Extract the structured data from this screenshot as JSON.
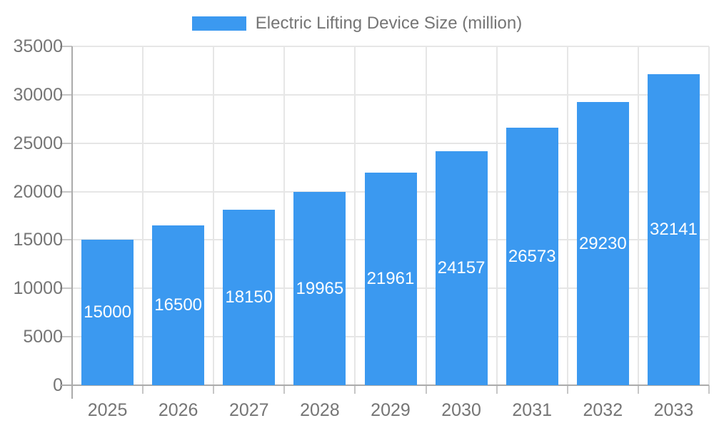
{
  "legend": {
    "label": "Electric Lifting Device Size (million)"
  },
  "colors": {
    "bar": "#3B99F0",
    "grid": "#E6E6E6",
    "axis": "#ABABAB",
    "tick": "#C6C6C6",
    "axis_text": "#757575",
    "value_text": "#FFFFFF",
    "background": "#FFFFFF"
  },
  "chart_data": {
    "type": "bar",
    "title": "Electric Lifting Device Size (million)",
    "legend_position": "top",
    "categories": [
      "2025",
      "2026",
      "2027",
      "2028",
      "2029",
      "2030",
      "2031",
      "2032",
      "2033"
    ],
    "series": [
      {
        "name": "Electric Lifting Device Size (million)",
        "values": [
          15000,
          16500,
          18150,
          19965,
          21961,
          24157,
          26573,
          29230,
          32141
        ]
      }
    ],
    "bar_value_labels": [
      "15000",
      "16500",
      "18150",
      "19965",
      "21961",
      "24157",
      "26573",
      "29230",
      "32141"
    ],
    "xlabel": "",
    "ylabel": "",
    "ylim": [
      0,
      35000
    ],
    "ytick_interval": 5000,
    "ytick_labels": [
      "0",
      "5000",
      "10000",
      "15000",
      "20000",
      "25000",
      "30000",
      "35000"
    ],
    "grid": true,
    "value_label_position": "center-of-bar"
  }
}
